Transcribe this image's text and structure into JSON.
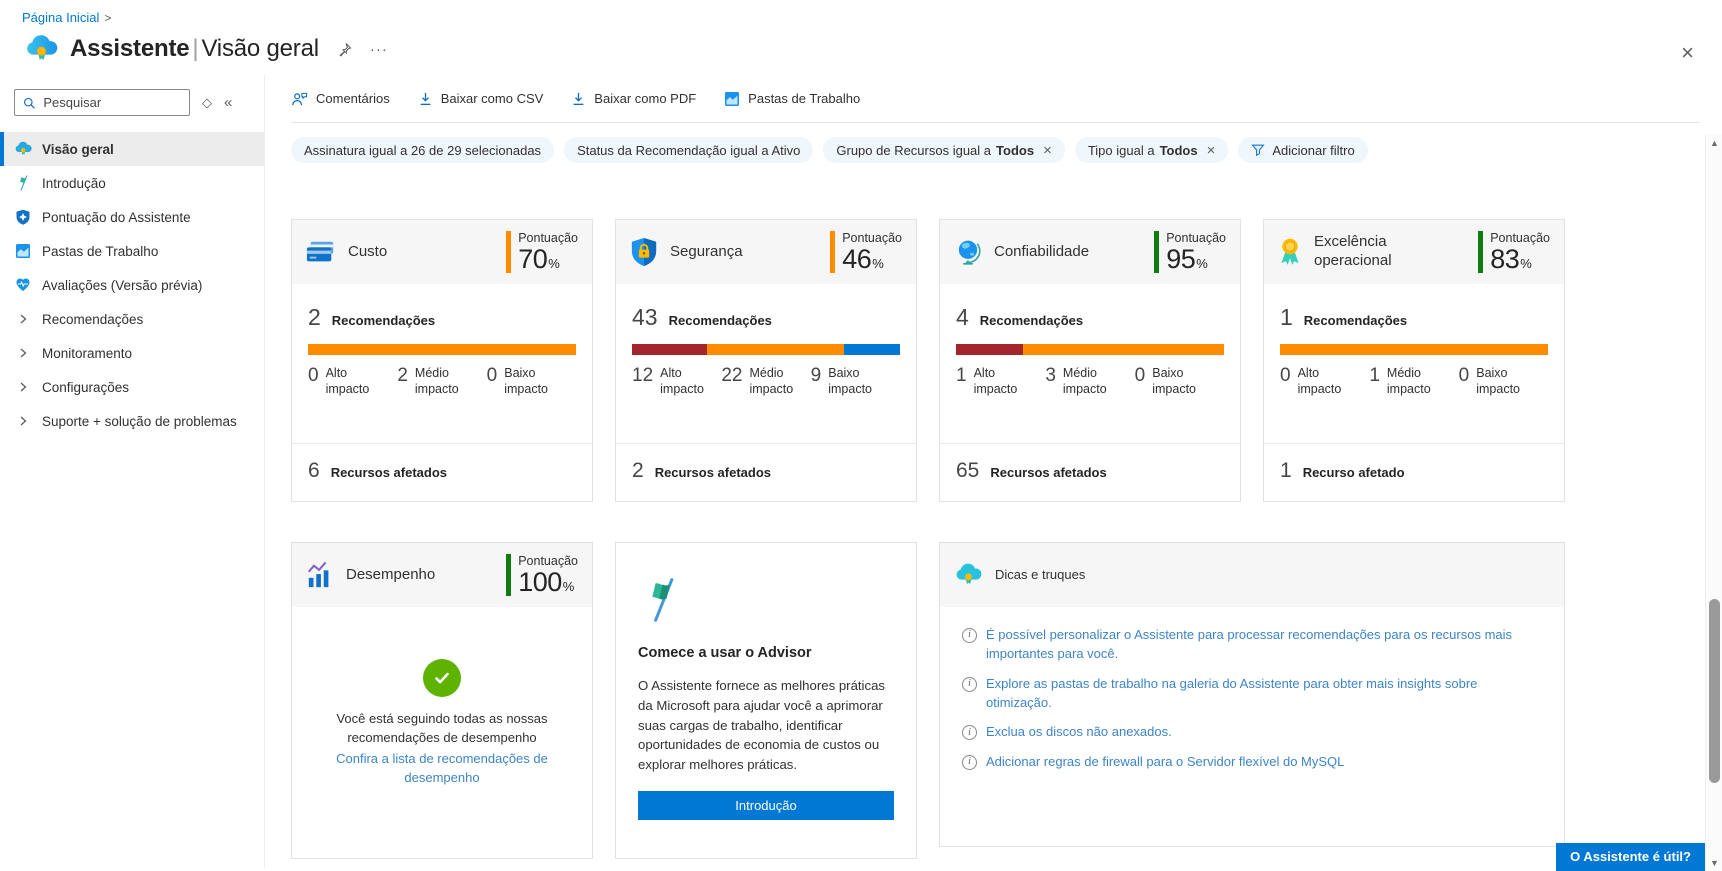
{
  "breadcrumb": {
    "home": "Página Inicial",
    "separator": ">"
  },
  "header": {
    "app_title": "Assistente",
    "divider": "|",
    "view_title": "Visão geral",
    "ellipsis": "···",
    "close": "×"
  },
  "sidebar": {
    "search_placeholder": "Pesquisar",
    "diamond": "◇",
    "collapse": "«",
    "items": [
      {
        "label": "Visão geral"
      },
      {
        "label": "Introdução"
      },
      {
        "label": "Pontuação do Assistente"
      },
      {
        "label": "Pastas de Trabalho"
      },
      {
        "label": "Avaliações (Versão prévia)"
      },
      {
        "label": "Recomendações"
      },
      {
        "label": "Monitoramento"
      },
      {
        "label": "Configurações"
      },
      {
        "label": "Suporte + solução de problemas"
      }
    ]
  },
  "toolbar": {
    "comments": "Comentários",
    "csv": "Baixar como CSV",
    "pdf": "Baixar como PDF",
    "workbooks": "Pastas de Trabalho"
  },
  "filters": {
    "pill1": "Assinatura igual a 26 de 29 selecionadas",
    "pill2": "Status da Recomendação igual a Ativo",
    "pill3_text": "Grupo de Recursos igual a",
    "pill3_value": "Todos",
    "pill4_text": "Tipo igual a",
    "pill4_value": "Todos",
    "close_x": "×",
    "add_filter": "Adicionar filtro"
  },
  "labels": {
    "score": "Pontuação",
    "pct": "%"
  },
  "score_cards": [
    {
      "title": "Custo",
      "score": "70",
      "score_color": "#ff8c00",
      "rec_count": "2",
      "rec_label": "Recomendações",
      "segments": [
        {
          "pct": 100,
          "color": "#ff8c00"
        }
      ],
      "impacts": [
        {
          "count": "0",
          "label": "Alto impacto"
        },
        {
          "count": "2",
          "label": "Médio impacto"
        },
        {
          "count": "0",
          "label": "Baixo impacto"
        }
      ],
      "affected_count": "6",
      "affected_label": "Recursos afetados"
    },
    {
      "title": "Segurança",
      "score": "46",
      "score_color": "#ff8c00",
      "rec_count": "43",
      "rec_label": "Recomendações",
      "segments": [
        {
          "pct": 27.9,
          "color": "#a4262c"
        },
        {
          "pct": 51.2,
          "color": "#ff8c00"
        },
        {
          "pct": 20.9,
          "color": "#0078d4"
        }
      ],
      "impacts": [
        {
          "count": "12",
          "label": "Alto impacto"
        },
        {
          "count": "22",
          "label": "Médio impacto"
        },
        {
          "count": "9",
          "label": "Baixo impacto"
        }
      ],
      "affected_count": "2",
      "affected_label": "Recursos afetados"
    },
    {
      "title": "Confiabilidade",
      "score": "95",
      "score_color": "#107c10",
      "rec_count": "4",
      "rec_label": "Recomendações",
      "segments": [
        {
          "pct": 25,
          "color": "#a4262c"
        },
        {
          "pct": 75,
          "color": "#ff8c00"
        }
      ],
      "impacts": [
        {
          "count": "1",
          "label": "Alto impacto"
        },
        {
          "count": "3",
          "label": "Médio impacto"
        },
        {
          "count": "0",
          "label": "Baixo impacto"
        }
      ],
      "affected_count": "65",
      "affected_label": "Recursos afetados"
    },
    {
      "title": "Excelência operacional",
      "score": "83",
      "score_color": "#107c10",
      "rec_count": "1",
      "rec_label": "Recomendações",
      "segments": [
        {
          "pct": 100,
          "color": "#ff8c00"
        }
      ],
      "impacts": [
        {
          "count": "0",
          "label": "Alto impacto"
        },
        {
          "count": "1",
          "label": "Médio impacto"
        },
        {
          "count": "0",
          "label": "Baixo impacto"
        }
      ],
      "affected_count": "1",
      "affected_label": "Recurso afetado"
    }
  ],
  "performance_card": {
    "title": "Desempenho",
    "score": "100",
    "score_color": "#107c10",
    "message": "Você está seguindo todas as nossas recomendações de desempenho",
    "link": "Confira a lista de recomendações de desempenho"
  },
  "get_started_card": {
    "title": "Comece a usar o Advisor",
    "body": "O Assistente fornece as melhores práticas da Microsoft para ajudar você a aprimorar suas cargas de trabalho, identificar oportunidades de economia de custos ou explorar melhores práticas.",
    "button": "Introdução"
  },
  "tips_card": {
    "title": "Dicas e truques",
    "tips": [
      "É possível personalizar o Assistente para processar recomendações para os recursos mais importantes para você.",
      "Explore as pastas de trabalho na galeria do Assistente para obter mais insights sobre otimização.",
      "Exclua os discos não anexados.",
      "Adicionar regras de firewall para o Servidor flexível do MySQL"
    ]
  },
  "feedback_button": "O Assistente é útil?",
  "scrollbar": {
    "up": "▲",
    "down": "▼"
  },
  "colors": {
    "accent": "#0078d4",
    "orange": "#ff8c00",
    "red": "#a4262c",
    "green": "#107c10",
    "check_green": "#5db300"
  }
}
